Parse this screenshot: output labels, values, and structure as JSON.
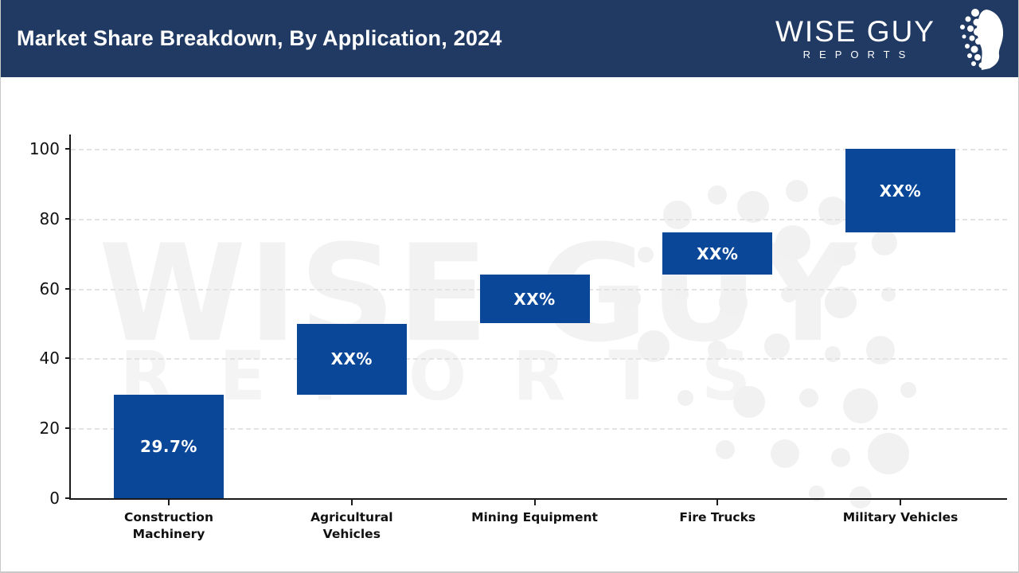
{
  "header": {
    "title": "Market Share Breakdown, By Application, 2024",
    "logo": {
      "line1": "WISE GUY",
      "line2": "REPORTS"
    },
    "bg_color": "#213a64"
  },
  "watermark": {
    "line1": "WISE GUY",
    "line2": "REPORTS"
  },
  "chart_data": {
    "type": "bar",
    "subtype": "waterfall",
    "title": "Market Share Breakdown, By Application, 2024",
    "categories": [
      "Construction Machinery",
      "Agricultural Vehicles",
      "Mining Equipment",
      "Fire Trucks",
      "Military Vehicles"
    ],
    "bars": [
      {
        "category": "Construction Machinery",
        "start": 0,
        "end": 29.7,
        "label": "29.7%"
      },
      {
        "category": "Agricultural Vehicles",
        "start": 29.7,
        "end": 50,
        "label": "XX%"
      },
      {
        "category": "Mining Equipment",
        "start": 50,
        "end": 64,
        "label": "XX%"
      },
      {
        "category": "Fire Trucks",
        "start": 64,
        "end": 76,
        "label": "XX%"
      },
      {
        "category": "Military Vehicles",
        "start": 76,
        "end": 100,
        "label": "XX%"
      }
    ],
    "bar_color": "#0a4799",
    "value_label_color": "#ffffff",
    "yticks": [
      0,
      20,
      40,
      60,
      80,
      100
    ],
    "ylim": [
      0,
      100
    ],
    "xlabel": "",
    "ylabel": "",
    "grid": "horizontal-dashed",
    "legend": "none"
  }
}
